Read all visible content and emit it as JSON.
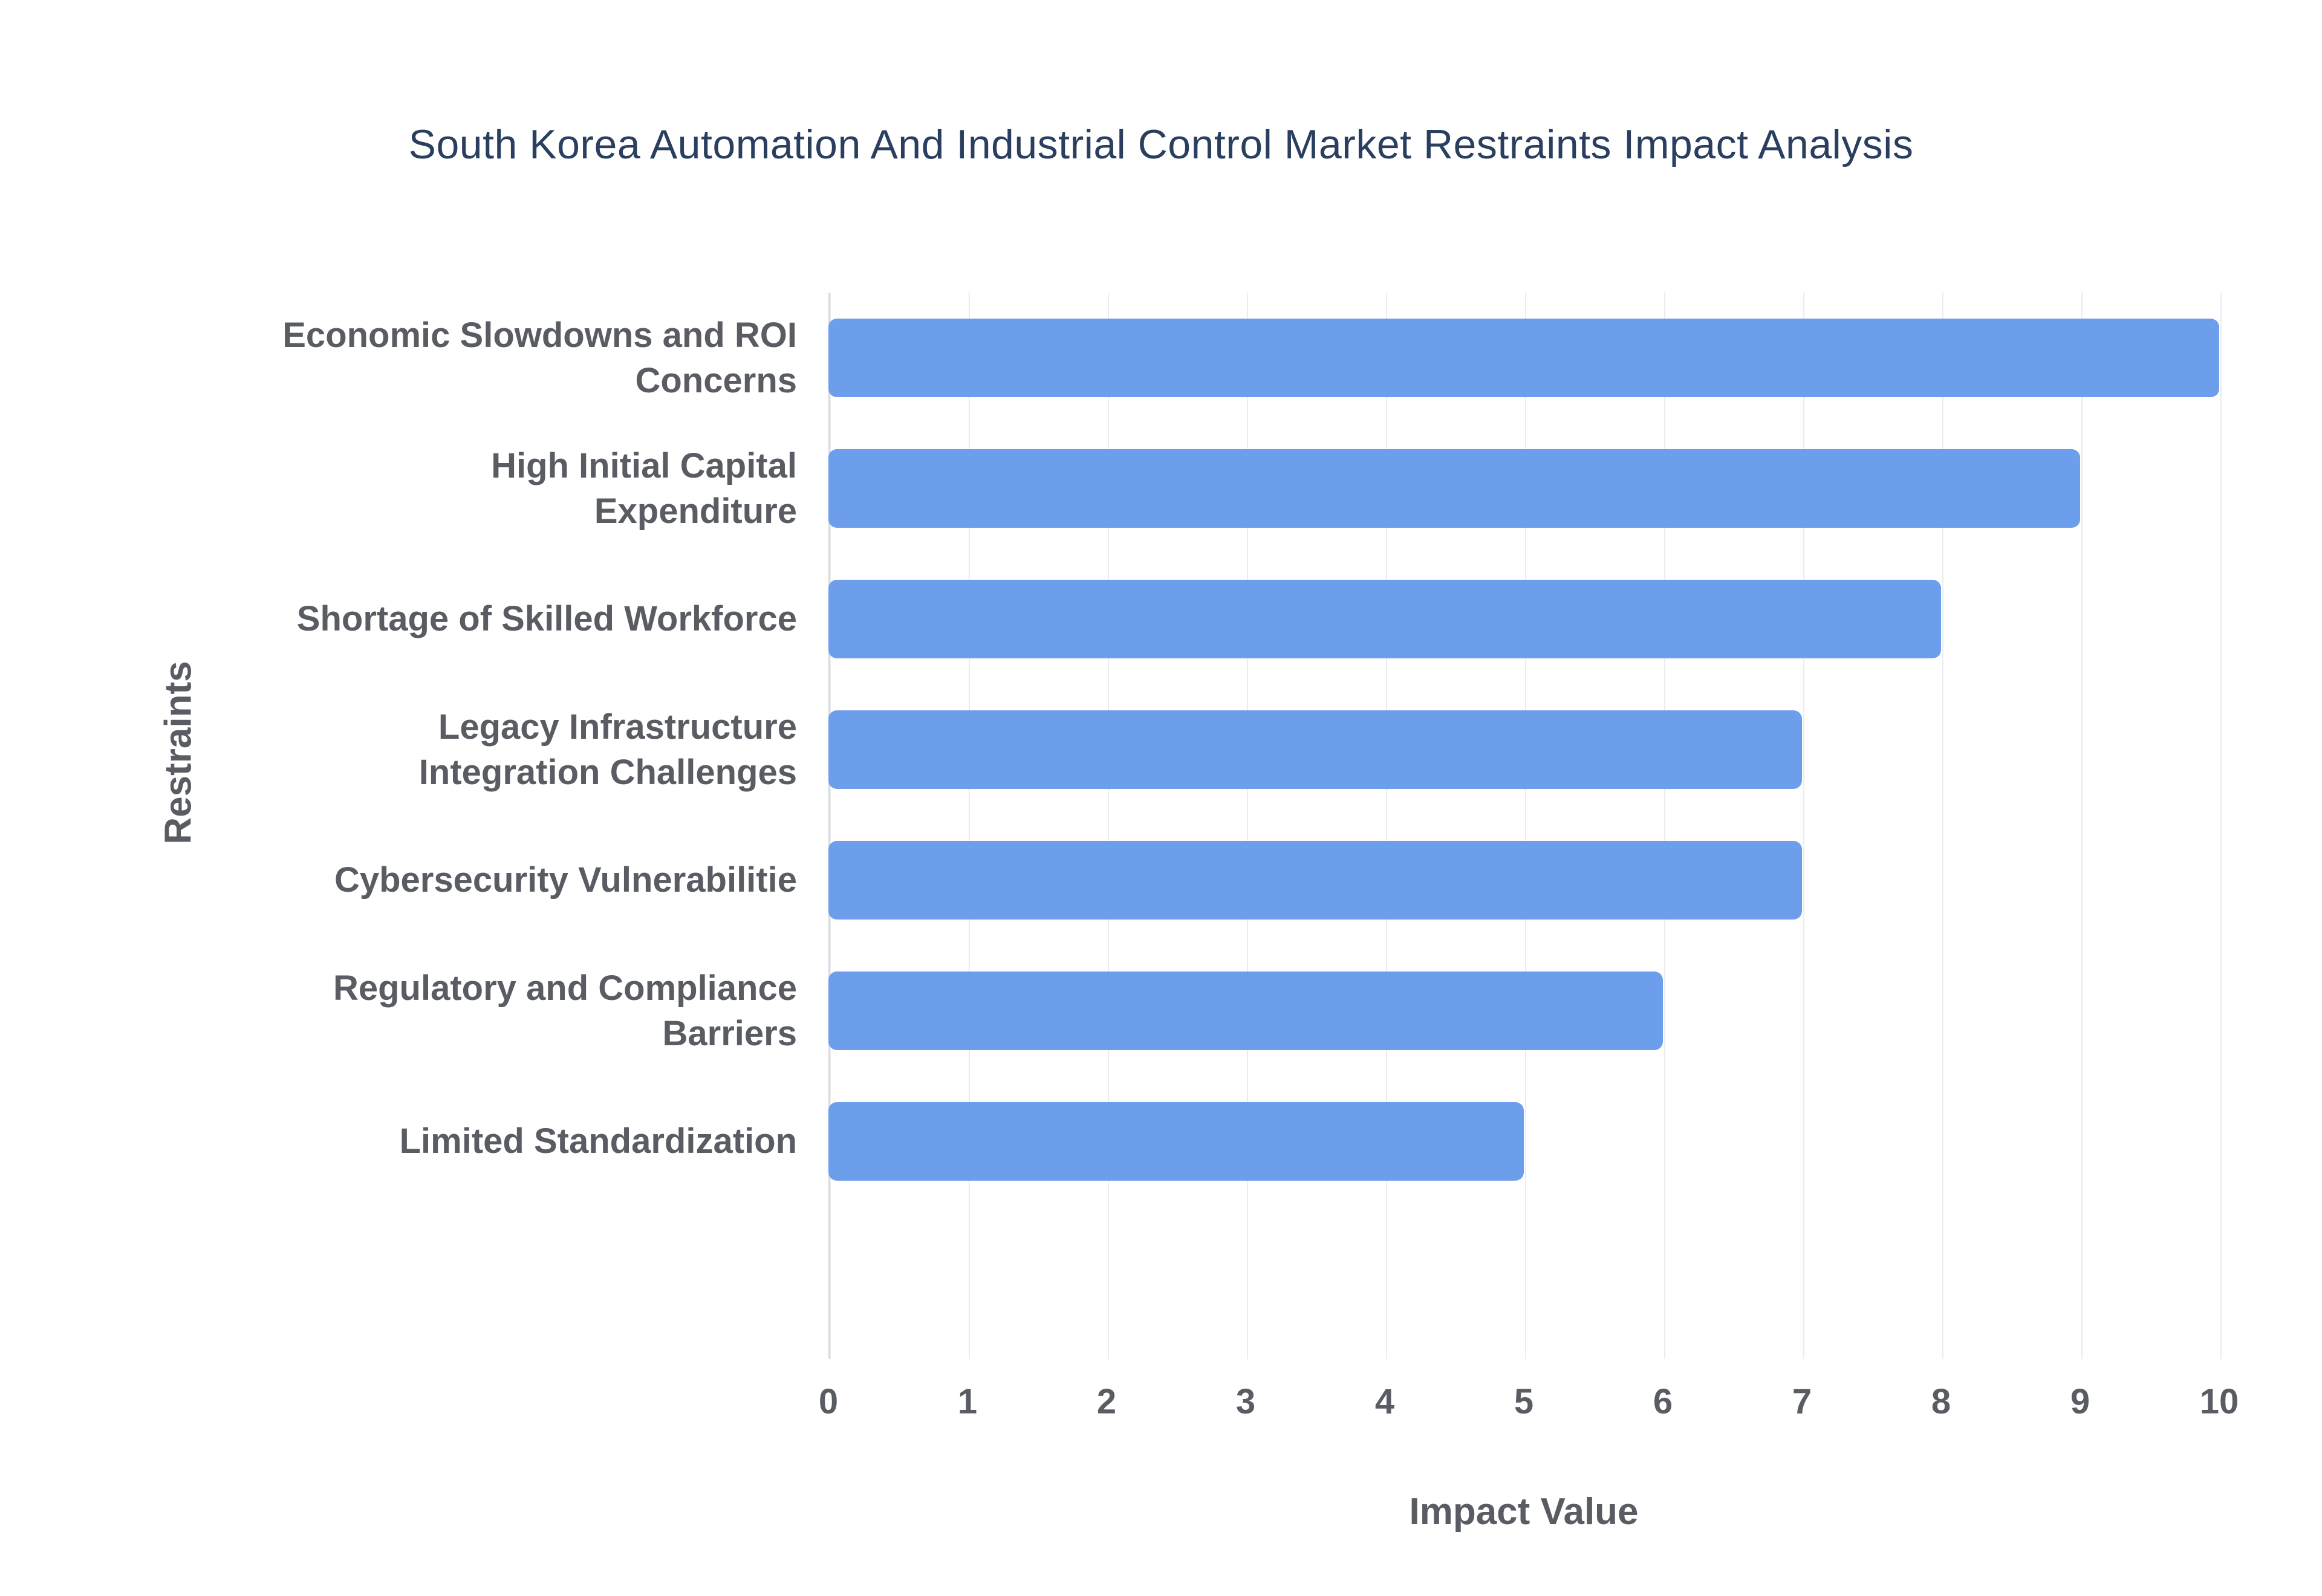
{
  "chart_data": {
    "type": "bar",
    "orientation": "horizontal",
    "title": "South Korea Automation And Industrial Control Market Restraints Impact Analysis",
    "xlabel": "Impact Value",
    "ylabel": "Restraints",
    "categories": [
      "Economic Slowdowns and ROI\nConcerns",
      "High Initial Capital\nExpenditure",
      "Shortage of Skilled Workforce",
      "Legacy Infrastructure\nIntegration Challenges",
      "Cybersecurity Vulnerabilitie",
      "Regulatory and Compliance\nBarriers",
      "Limited Standardization"
    ],
    "values": [
      10,
      9,
      8,
      7,
      7,
      6,
      5
    ],
    "xlim": [
      0,
      10
    ],
    "ticks": [
      0,
      1,
      2,
      3,
      4,
      5,
      6,
      7,
      8,
      9,
      10
    ],
    "grid": "vertical",
    "legend": "none",
    "bar_color": "#6d9eeb",
    "title_color": "#2a3f5f",
    "label_color": "#595d63"
  }
}
